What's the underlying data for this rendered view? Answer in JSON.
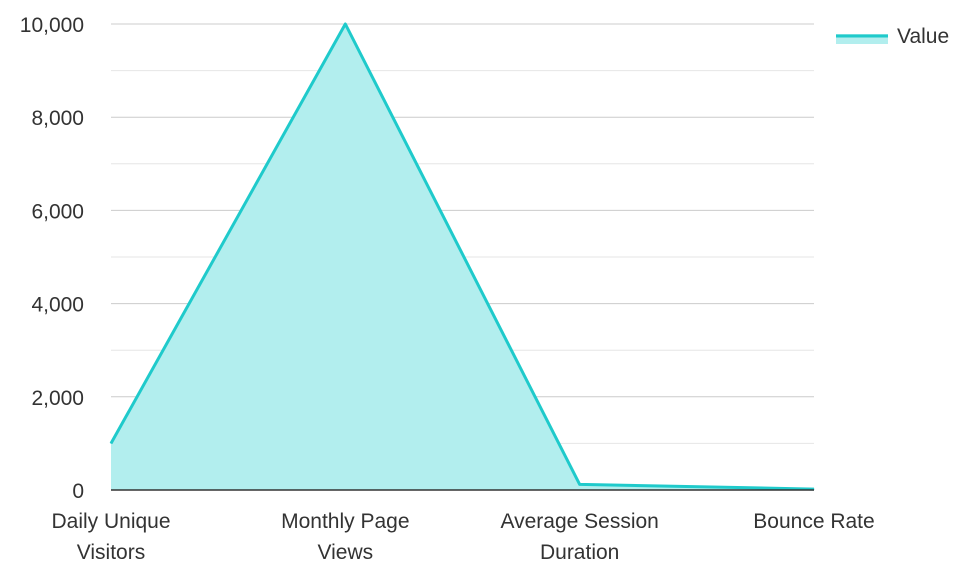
{
  "chart_data": {
    "type": "area",
    "categories": [
      "Daily Unique Visitors",
      "Monthly Page Views",
      "Average Session Duration",
      "Bounce Rate"
    ],
    "category_label_lines": [
      [
        "Daily Unique",
        "Visitors"
      ],
      [
        "Monthly Page",
        "Views"
      ],
      [
        "Average Session",
        "Duration"
      ],
      [
        "Bounce Rate"
      ]
    ],
    "series": [
      {
        "name": "Value",
        "values": [
          1000,
          10000,
          120,
          20
        ]
      }
    ],
    "ylim": [
      0,
      10000
    ],
    "yticks": [
      0,
      2000,
      4000,
      6000,
      8000,
      10000
    ],
    "ytick_labels": [
      "0",
      "2,000",
      "4,000",
      "6,000",
      "8,000",
      "10,000"
    ],
    "grid": true,
    "legend": {
      "position": "top-right"
    },
    "colors": {
      "line": "#1fcacb",
      "fill": "#b2eeee",
      "grid": "#cccccc",
      "minor_grid": "#e6e6e6",
      "axis": "#333333"
    }
  }
}
